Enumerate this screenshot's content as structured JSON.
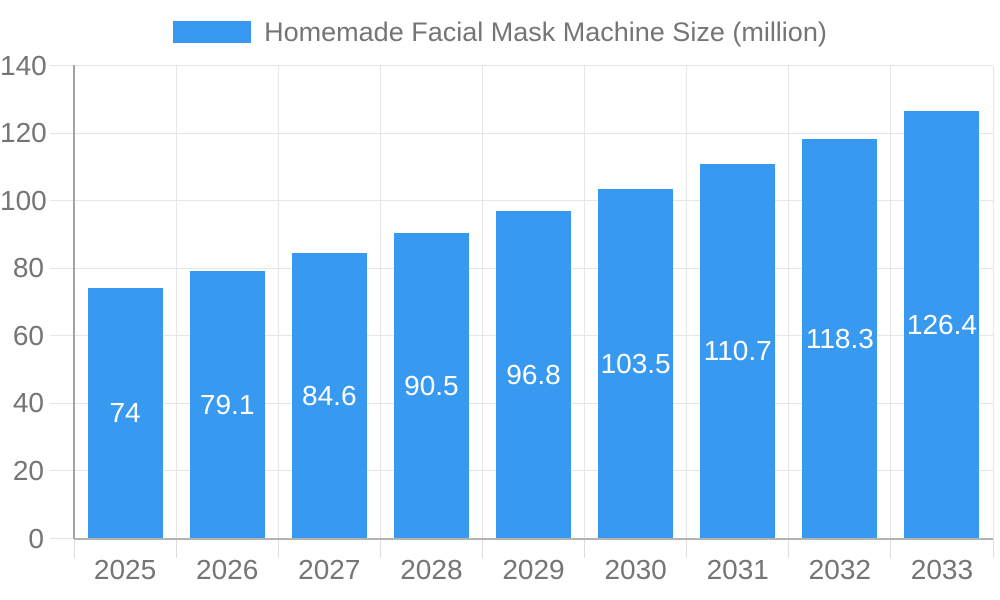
{
  "chart_data": {
    "type": "bar",
    "title": "Homemade Facial Mask Machine Size (million)",
    "legend_label": "Homemade Facial Mask Machine Size (million)",
    "legend_position": "top-center",
    "categories": [
      "2025",
      "2026",
      "2027",
      "2028",
      "2029",
      "2030",
      "2031",
      "2032",
      "2033"
    ],
    "series": [
      {
        "name": "Homemade Facial Mask Machine Size (million)",
        "values": [
          74,
          79.1,
          84.6,
          90.5,
          96.8,
          103.5,
          110.7,
          118.3,
          126.4
        ]
      }
    ],
    "value_labels": [
      74,
      79.1,
      84.6,
      90.5,
      96.8,
      103.5,
      110.7,
      118.3,
      126.4
    ],
    "value_label_position": "inside-center",
    "xlabel": "",
    "ylabel": "",
    "ylim": [
      0,
      140
    ],
    "yticks": [
      0,
      20,
      40,
      60,
      80,
      100,
      120,
      140
    ],
    "grid": "on"
  },
  "colors": {
    "bar": "#3899f0",
    "grid": "#e6e6e6",
    "tick": "#dedede",
    "axis_y": "#a3a3a3",
    "axis_x": "#b3b3b3",
    "axis_text": "#757575",
    "value_text": "#ffffff",
    "background": "#ffffff"
  }
}
